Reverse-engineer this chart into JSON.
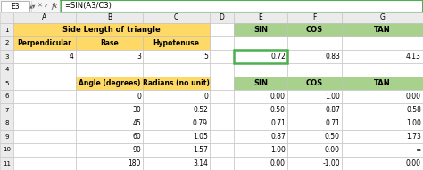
{
  "formula_bar_cell": "E3",
  "formula_bar_formula": "=SIN(A3/C3)",
  "title1": "Side Length of triangle",
  "row2_labels": [
    "Perpendicular",
    "Base",
    "Hypotenuse"
  ],
  "row3_values": [
    "4",
    "3",
    "5"
  ],
  "section2_headers": [
    "Angle (degrees)",
    "Radians (no unit)"
  ],
  "angle_data": [
    [
      0,
      0,
      "0.00",
      "1.00",
      "0.00"
    ],
    [
      30,
      0.52,
      "0.50",
      "0.87",
      "0.58"
    ],
    [
      45,
      0.79,
      "0.71",
      "0.71",
      "1.00"
    ],
    [
      60,
      1.05,
      "0.87",
      "0.50",
      "1.73"
    ],
    [
      90,
      1.57,
      "1.00",
      "0.00",
      "∞"
    ],
    [
      180,
      3.14,
      "0.00",
      "-1.00",
      "0.00"
    ]
  ],
  "trig_header": [
    "SIN",
    "COS",
    "TAN"
  ],
  "trig_row3": [
    "0.72",
    "0.83",
    "4.13"
  ],
  "color_yellow": "#FFD966",
  "color_green_header": "#A9D18E",
  "color_white": "#FFFFFF",
  "color_col_header_bg": "#EBEBEB",
  "color_black": "#000000",
  "color_grid": "#C0C0C0",
  "color_formula_green": "#4CAF50"
}
